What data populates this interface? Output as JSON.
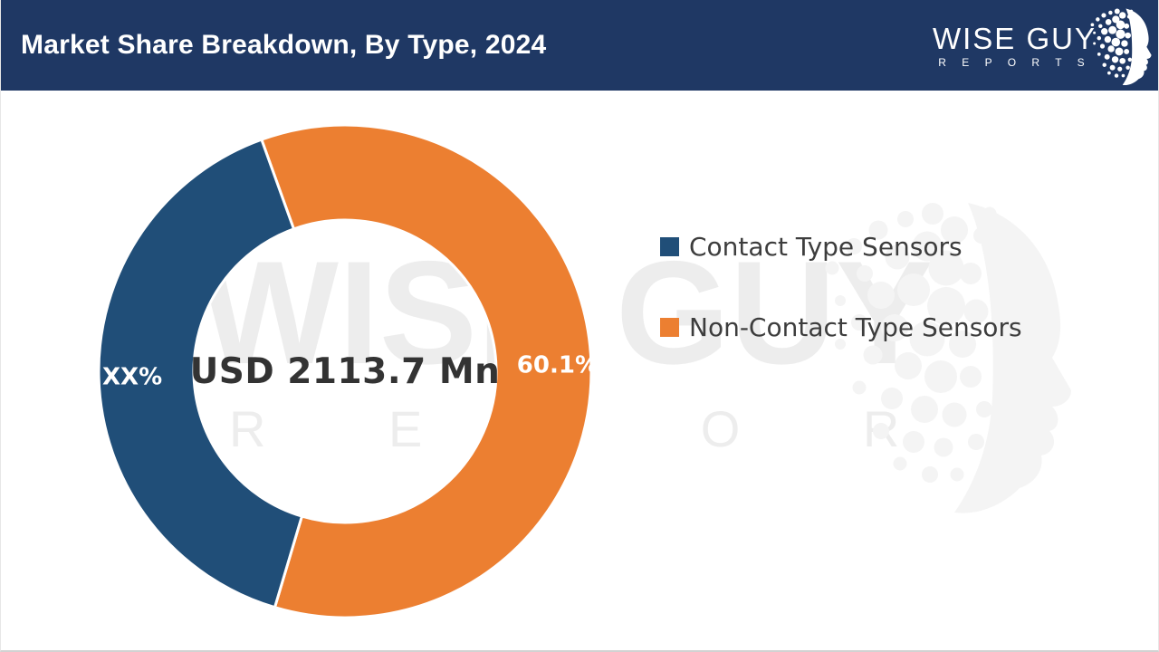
{
  "header": {
    "title": "Market Share Breakdown, By Type, 2024",
    "logo": {
      "wordmark": "WISE GUY",
      "subtext": "R E P O R T S"
    }
  },
  "watermark": {
    "wordmark": "WISE GUY",
    "subtext": "R E P O R T S"
  },
  "chart_data": {
    "type": "donut",
    "title": "Market Share Breakdown, By Type, 2024",
    "center_label": "USD 2113.7 Mn",
    "start_angle_deg": -19.8,
    "legend_position": "right",
    "slices": [
      {
        "name": "Non-Contact Type Sensors",
        "value": 60.1,
        "label": "60.1%",
        "color": "#EC7F31"
      },
      {
        "name": "Contact Type Sensors",
        "value": 39.9,
        "label": "XX%",
        "color": "#204E78"
      }
    ],
    "legend": [
      {
        "label": "Contact Type Sensors",
        "color": "#204E78"
      },
      {
        "label": "Non-Contact Type Sensors",
        "color": "#EC7F31"
      }
    ]
  }
}
